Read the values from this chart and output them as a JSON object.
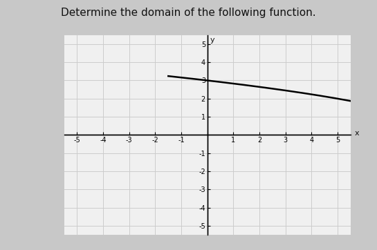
{
  "title": "Determine the domain of the following function.",
  "title_fontsize": 11,
  "background_color": "#c8c8c8",
  "plot_bg_color": "#f0f0f0",
  "grid_color": "#cccccc",
  "axis_color": "#000000",
  "curve_color": "#000000",
  "curve_linewidth": 1.8,
  "xlim": [
    -5.5,
    5.5
  ],
  "ylim": [
    -5.5,
    5.5
  ],
  "xticks": [
    -5,
    -4,
    -3,
    -2,
    -1,
    1,
    2,
    3,
    4,
    5
  ],
  "yticks": [
    -5,
    -4,
    -3,
    -2,
    -1,
    1,
    2,
    3,
    4,
    5
  ],
  "tick_fontsize": 7,
  "xlabel": "x",
  "ylabel": "y",
  "func_params": {
    "a": 1.0,
    "shift": 9.0
  },
  "x_start": -1.5,
  "x_end": 5.5
}
